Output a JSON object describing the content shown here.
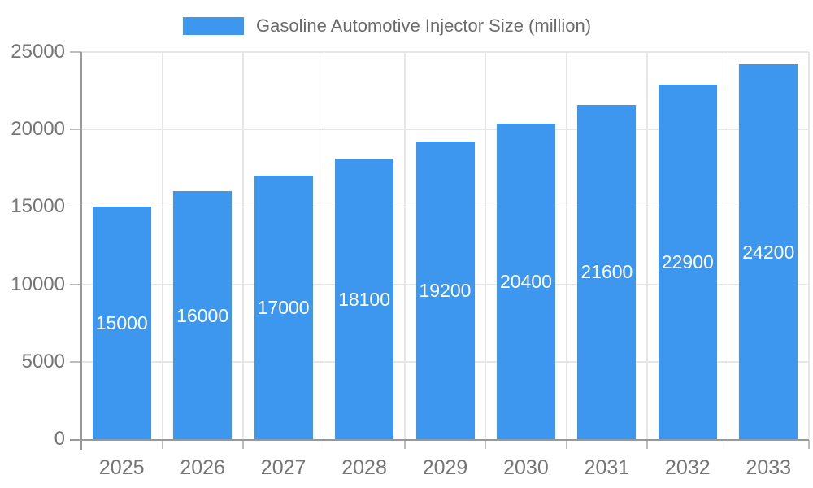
{
  "chart_data": {
    "type": "bar",
    "title": "Gasoline Automotive Injector Size (million)",
    "categories": [
      "2025",
      "2026",
      "2027",
      "2028",
      "2029",
      "2030",
      "2031",
      "2032",
      "2033"
    ],
    "series": [
      {
        "name": "Gasoline Automotive Injector Size (million)",
        "values": [
          15000,
          16000,
          17000,
          18100,
          19200,
          20400,
          21600,
          22900,
          24200
        ],
        "color": "#3d97ee"
      }
    ],
    "xlabel": "",
    "ylabel": "",
    "ylim": [
      0,
      25000
    ],
    "y_ticks": [
      0,
      5000,
      10000,
      15000,
      20000,
      25000
    ],
    "grid": true,
    "legend_position": "top",
    "value_labels": {
      "show": true,
      "position": "inside-center",
      "color": "#ffffff"
    }
  },
  "colors": {
    "bar": "#3d97ee",
    "axis_line": "#999999",
    "tick": "#bdbdbd",
    "gridline": "#e6e6e6",
    "axis_label": "#757575",
    "legend_label": "#6b6b6b",
    "value_label": "#ffffff",
    "background": "#ffffff"
  }
}
